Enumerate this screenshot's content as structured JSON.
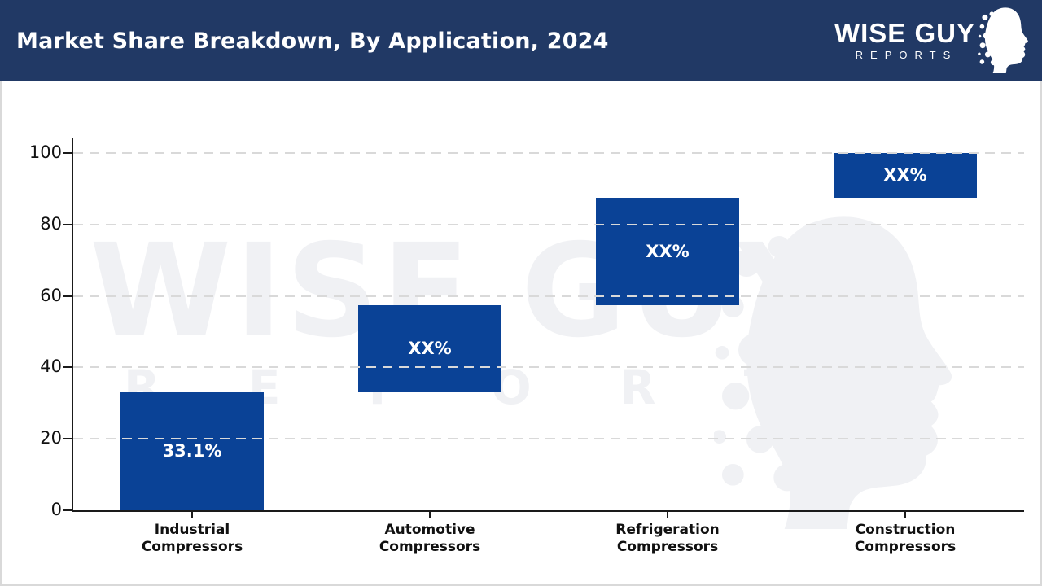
{
  "header": {
    "title": "Market Share Breakdown, By Application, 2024",
    "logo": {
      "line1": "WISE GUY",
      "line2": "REPORTS"
    }
  },
  "watermark": {
    "line1": "WISE GUY",
    "line2": "R E P O R T S"
  },
  "colors": {
    "header_bg": "#213965",
    "bar": "#0a4296",
    "bar_label": "#ffffff",
    "grid": "#d9d9d9",
    "axis": "#1a1a1a",
    "watermark": "#f0f1f4"
  },
  "chart_data": {
    "type": "bar",
    "subtype": "waterfall",
    "title": "Market Share Breakdown, By Application, 2024",
    "categories": [
      "Industrial Compressors",
      "Automotive Compressors",
      "Refrigeration Compressors",
      "Construction Compressors"
    ],
    "segments": [
      {
        "category": "Industrial Compressors",
        "start": 0,
        "end": 33.1,
        "label": "33.1%"
      },
      {
        "category": "Automotive Compressors",
        "start": 33.1,
        "end": 57.5,
        "label": "XX%"
      },
      {
        "category": "Refrigeration Compressors",
        "start": 57.5,
        "end": 87.5,
        "label": "XX%"
      },
      {
        "category": "Construction Compressors",
        "start": 87.5,
        "end": 100,
        "label": "XX%"
      }
    ],
    "ylim": [
      0,
      100
    ],
    "yticks": [
      0,
      20,
      40,
      60,
      80,
      100
    ],
    "grid": "horizontal-dashed",
    "legend": "none",
    "bar_color": "#0a4296",
    "label_color": "#ffffff"
  }
}
